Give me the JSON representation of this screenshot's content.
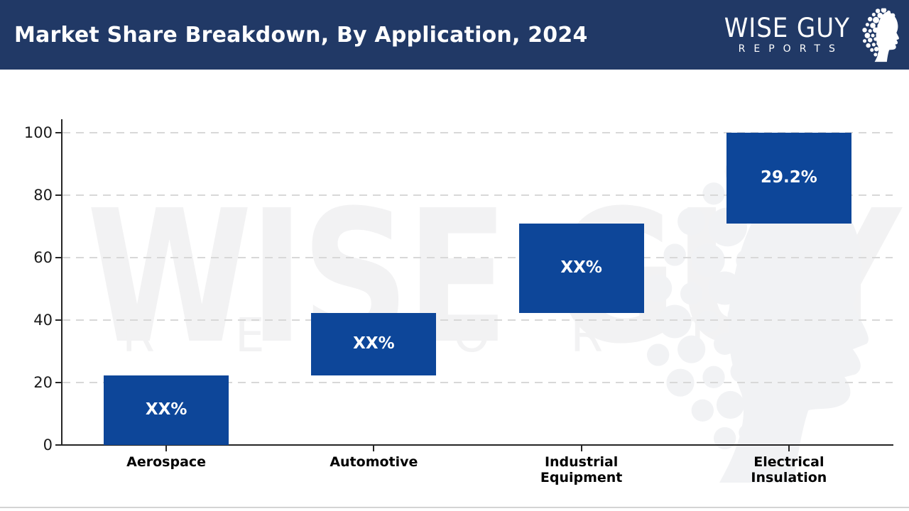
{
  "header": {
    "title": "Market Share Breakdown, By Application, 2024",
    "logo": {
      "line1": "WISE GUY",
      "line2": "REPORTS"
    }
  },
  "watermark": {
    "line1": "WISE GUY",
    "line2": "R E P O R T S"
  },
  "chart_data": {
    "type": "bar",
    "variant": "waterfall",
    "title": "Market Share Breakdown, By Application, 2024",
    "categories": [
      "Aerospace",
      "Automotive",
      "Industrial\nEquipment",
      "Electrical\nInsulation"
    ],
    "bars": [
      {
        "category": "Aerospace",
        "start": 0,
        "end": 22.3,
        "value_label": "XX%"
      },
      {
        "category": "Automotive",
        "start": 22.3,
        "end": 42.3,
        "value_label": "XX%"
      },
      {
        "category": "Industrial Equipment",
        "start": 42.3,
        "end": 70.8,
        "value_label": "XX%"
      },
      {
        "category": "Electrical Insulation",
        "start": 70.8,
        "end": 100,
        "value_label": "29.2%"
      }
    ],
    "ylim": [
      0,
      100
    ],
    "yticks": [
      0,
      20,
      40,
      60,
      80,
      100
    ],
    "grid": "horizontal-dashed",
    "legend": "none",
    "bar_color": "#0d4699"
  },
  "colors": {
    "header_bg": "#213966",
    "bar": "#0d4699",
    "grid": "#d8d8d8",
    "axis": "#262626",
    "tick_text": "#1a1a1a",
    "watermark": "#f2f2f3",
    "bar_label_text": "#ffffff"
  }
}
